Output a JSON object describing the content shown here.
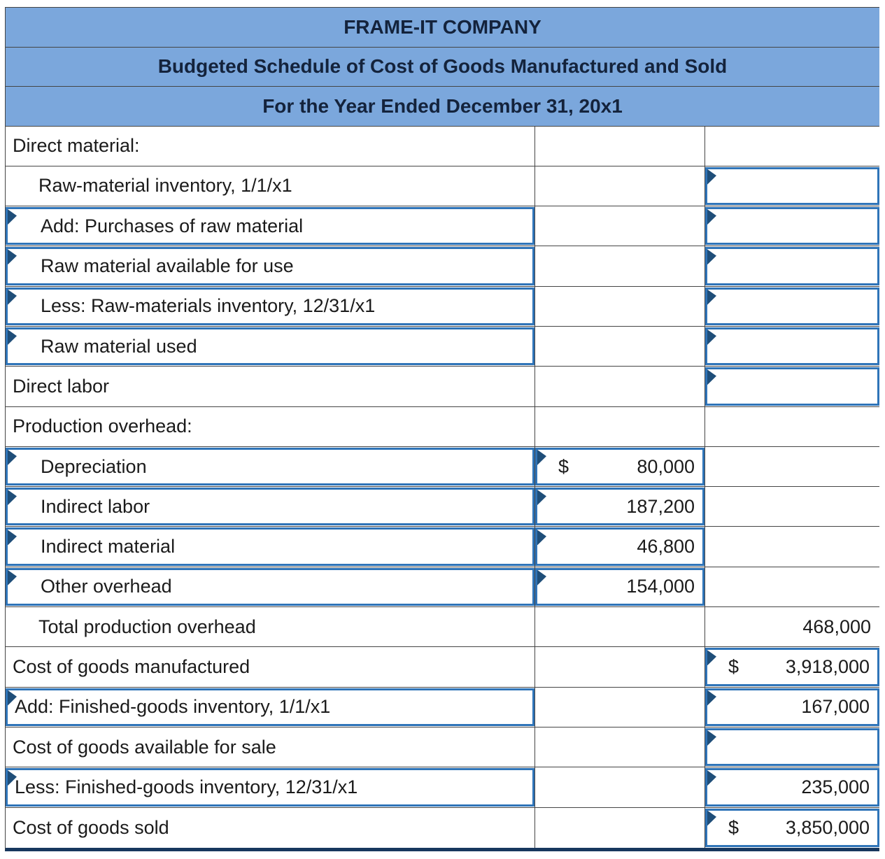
{
  "header": {
    "line1": "FRAME-IT COMPANY",
    "line2": "Budgeted Schedule of Cost of Goods Manufactured and Sold",
    "line3": "For the Year Ended December 31, 20x1"
  },
  "rows": [
    {
      "label": "Direct material:"
    },
    {
      "label": "Raw-material inventory, 1/1/x1"
    },
    {
      "label": "Add: Purchases of raw material"
    },
    {
      "label": "Raw material available for use"
    },
    {
      "label": "Less: Raw-materials inventory, 12/31/x1"
    },
    {
      "label": "Raw material used"
    },
    {
      "label": "Direct labor"
    },
    {
      "label": "Production overhead:"
    },
    {
      "label": "Depreciation",
      "currency": "$",
      "amount": "80,000"
    },
    {
      "label": "Indirect labor",
      "amount": "187,200"
    },
    {
      "label": "Indirect material",
      "amount": "46,800"
    },
    {
      "label": "Other overhead",
      "amount": "154,000"
    },
    {
      "label": "Total production overhead",
      "amount": "468,000"
    },
    {
      "label": "Cost of goods manufactured",
      "currency": "$",
      "amount": "3,918,000"
    },
    {
      "label": "Add: Finished-goods inventory, 1/1/x1",
      "amount": "167,000"
    },
    {
      "label": "Cost of goods available for sale"
    },
    {
      "label": "Less: Finished-goods inventory, 12/31/x1",
      "amount": "235,000"
    },
    {
      "label": "Cost of goods sold",
      "currency": "$",
      "amount": "3,850,000"
    }
  ],
  "colors": {
    "header_bg": "#7ba7dc",
    "box_border": "#2f74b8",
    "marker": "#1f4e79",
    "grid": "#454545",
    "bottom": "#17375e"
  }
}
